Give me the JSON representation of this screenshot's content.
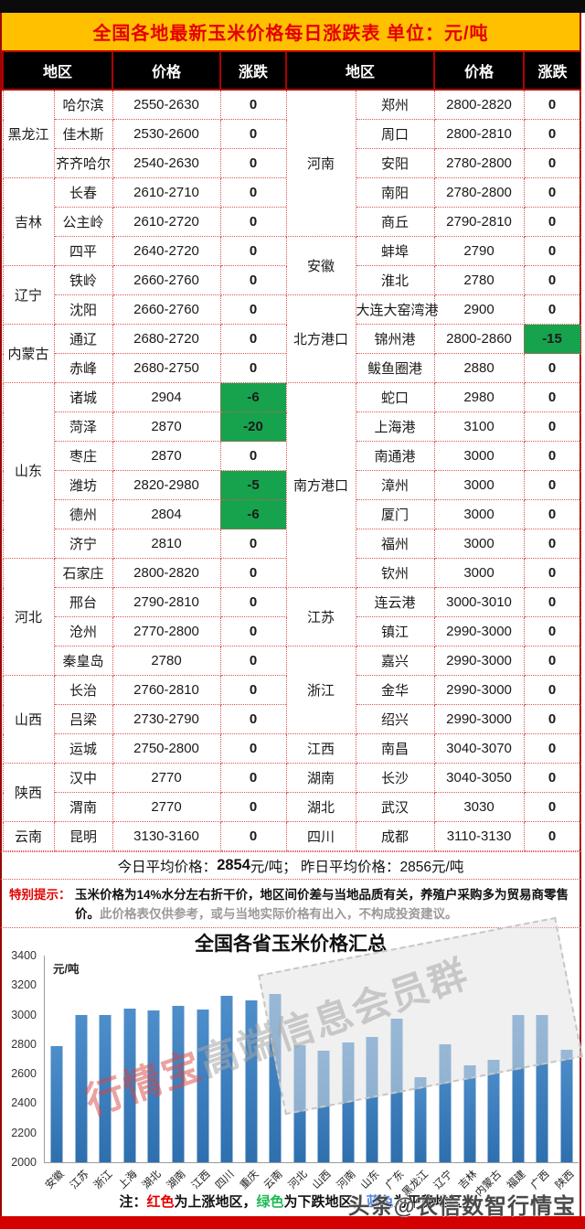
{
  "title_bar": {
    "text": "全国各地最新玉米价格每日涨跌表  单位：元/吨"
  },
  "table": {
    "headers": {
      "region": "地区",
      "price": "价格",
      "change": "涨跌"
    },
    "left_groups": [
      {
        "province": "黑龙江",
        "rows": [
          [
            "哈尔滨",
            "2550-2630",
            "0"
          ],
          [
            "佳木斯",
            "2530-2600",
            "0"
          ],
          [
            "齐齐哈尔",
            "2540-2630",
            "0"
          ]
        ]
      },
      {
        "province": "吉林",
        "rows": [
          [
            "长春",
            "2610-2710",
            "0"
          ],
          [
            "公主岭",
            "2610-2720",
            "0"
          ],
          [
            "四平",
            "2640-2720",
            "0"
          ]
        ]
      },
      {
        "province": "辽宁",
        "rows": [
          [
            "铁岭",
            "2660-2760",
            "0"
          ],
          [
            "沈阳",
            "2660-2760",
            "0"
          ]
        ]
      },
      {
        "province": "内蒙古",
        "rows": [
          [
            "通辽",
            "2680-2720",
            "0"
          ],
          [
            "赤峰",
            "2680-2750",
            "0"
          ]
        ]
      },
      {
        "province": "山东",
        "rows": [
          [
            "诸城",
            "2904",
            "-6"
          ],
          [
            "菏泽",
            "2870",
            "-20"
          ],
          [
            "枣庄",
            "2870",
            "0"
          ],
          [
            "潍坊",
            "2820-2980",
            "-5"
          ],
          [
            "德州",
            "2804",
            "-6"
          ],
          [
            "济宁",
            "2810",
            "0"
          ]
        ]
      },
      {
        "province": "河北",
        "rows": [
          [
            "石家庄",
            "2800-2820",
            "0"
          ],
          [
            "邢台",
            "2790-2810",
            "0"
          ],
          [
            "沧州",
            "2770-2800",
            "0"
          ],
          [
            "秦皇岛",
            "2780",
            "0"
          ]
        ]
      },
      {
        "province": "山西",
        "rows": [
          [
            "长治",
            "2760-2810",
            "0"
          ],
          [
            "吕梁",
            "2730-2790",
            "0"
          ],
          [
            "运城",
            "2750-2800",
            "0"
          ]
        ]
      },
      {
        "province": "陕西",
        "rows": [
          [
            "汉中",
            "2770",
            "0"
          ],
          [
            "渭南",
            "2770",
            "0"
          ]
        ]
      },
      {
        "province": "云南",
        "rows": [
          [
            "昆明",
            "3130-3160",
            "0"
          ]
        ]
      }
    ],
    "right_groups": [
      {
        "province": "河南",
        "rows": [
          [
            "郑州",
            "2800-2820",
            "0"
          ],
          [
            "周口",
            "2800-2810",
            "0"
          ],
          [
            "安阳",
            "2780-2800",
            "0"
          ],
          [
            "南阳",
            "2780-2800",
            "0"
          ],
          [
            "商丘",
            "2790-2810",
            "0"
          ]
        ]
      },
      {
        "province": "安徽",
        "rows": [
          [
            "蚌埠",
            "2790",
            "0"
          ],
          [
            "淮北",
            "2780",
            "0"
          ]
        ]
      },
      {
        "province": "北方港口",
        "rows": [
          [
            "大连大窑湾港",
            "2900",
            "0"
          ],
          [
            "锦州港",
            "2800-2860",
            "-15"
          ],
          [
            "鲅鱼圈港",
            "2880",
            "0"
          ]
        ]
      },
      {
        "province": "南方港口",
        "rows": [
          [
            "蛇口",
            "2980",
            "0"
          ],
          [
            "上海港",
            "3100",
            "0"
          ],
          [
            "南通港",
            "3000",
            "0"
          ],
          [
            "漳州",
            "3000",
            "0"
          ],
          [
            "厦门",
            "3000",
            "0"
          ],
          [
            "福州",
            "3000",
            "0"
          ],
          [
            "钦州",
            "3000",
            "0"
          ]
        ]
      },
      {
        "province": "江苏",
        "rows": [
          [
            "连云港",
            "3000-3010",
            "0"
          ],
          [
            "镇江",
            "2990-3000",
            "0"
          ]
        ]
      },
      {
        "province": "浙江",
        "rows": [
          [
            "嘉兴",
            "2990-3000",
            "0"
          ],
          [
            "金华",
            "2990-3000",
            "0"
          ],
          [
            "绍兴",
            "2990-3000",
            "0"
          ]
        ]
      },
      {
        "province": "江西",
        "rows": [
          [
            "南昌",
            "3040-3070",
            "0"
          ]
        ]
      },
      {
        "province": "湖南",
        "rows": [
          [
            "长沙",
            "3040-3050",
            "0"
          ]
        ]
      },
      {
        "province": "湖北",
        "rows": [
          [
            "武汉",
            "3030",
            "0"
          ]
        ]
      },
      {
        "province": "四川",
        "rows": [
          [
            "成都",
            "3110-3130",
            "0"
          ]
        ]
      }
    ]
  },
  "summary": {
    "today_label": "今日平均价格：",
    "today_value": "2854",
    "today_suffix": "元/吨；",
    "yesterday_text": "昨日平均价格：2856元/吨"
  },
  "notice": {
    "label": "特别提示：",
    "bold_text": "玉米价格为14%水分左右折干价，地区间价差与当地品质有关，养殖户采购多为贸易商零售价。",
    "gray_text": "此价格表仅供参考，或与当地实际价格有出入，不构成投资建议。"
  },
  "chart_data": {
    "type": "bar",
    "title": "全国各省玉米价格汇总",
    "ylabel": "元/吨",
    "categories": [
      "安徽",
      "江苏",
      "浙江",
      "上海",
      "湖北",
      "湖南",
      "江西",
      "四川",
      "重庆",
      "云南",
      "河北",
      "山西",
      "河南",
      "山东",
      "广东",
      "黑龙江",
      "辽宁",
      "吉林",
      "内蒙古",
      "福建",
      "广西",
      "陕西"
    ],
    "values": [
      2785,
      3000,
      2995,
      3040,
      3030,
      3060,
      3035,
      3130,
      3095,
      3140,
      2795,
      2755,
      2810,
      2850,
      2975,
      2575,
      2800,
      2655,
      2695,
      3000,
      2995,
      2765
    ],
    "ylim": [
      2000,
      3400
    ],
    "yticks": [
      2000,
      2200,
      2400,
      2600,
      2800,
      3000,
      3200,
      3400
    ],
    "bar_color": "#2E75B6",
    "grid": false,
    "legend": "none"
  },
  "chart_note": {
    "prefix": "注：",
    "red_word": "红色",
    "red_tail": "为上涨地区，",
    "green_word": "绿色",
    "green_tail": "为下跌地区，",
    "blue_word": "蓝色",
    "blue_tail": "为平稳地区"
  },
  "watermarks": {
    "stamp_red": "行情宝",
    "stamp_gray": "高端信息会员群",
    "footer": "头条@农信数智行情宝"
  },
  "colors": {
    "title_bg": "#FFC000",
    "title_text": "#E50000",
    "header_bg": "#000000",
    "border_red": "#C00000",
    "down_green": "#17A34E",
    "bar_blue": "#2E75B6"
  }
}
